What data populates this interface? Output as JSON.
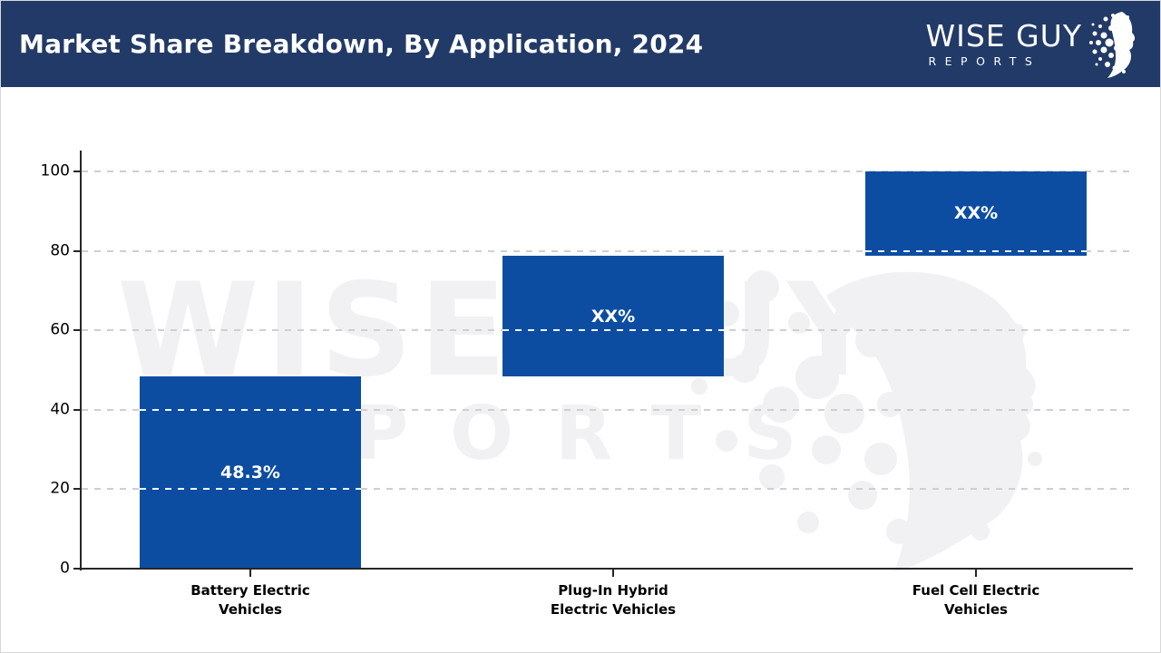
{
  "header": {
    "title": "Market Share Breakdown, By Application, 2024",
    "bg_color": "#223a67",
    "logo": {
      "line1": "WISE GUY",
      "line2": "REPORTS"
    }
  },
  "watermark": {
    "line1": "WISE GUY",
    "line2": "REPORTS"
  },
  "chart_data": {
    "type": "bar",
    "subtype": "stacked-waterfall",
    "title": "Market Share Breakdown, By Application, 2024",
    "categories": [
      [
        "Battery Electric",
        "Vehicles"
      ],
      [
        "Plug-In Hybrid",
        "Electric Vehicles"
      ],
      [
        "Fuel Cell Electric",
        "Vehicles"
      ]
    ],
    "segments": [
      {
        "start": 0,
        "end": 48.3,
        "label": "48.3%"
      },
      {
        "start": 48.3,
        "end": 78.8,
        "label": "XX%"
      },
      {
        "start": 78.8,
        "end": 100,
        "label": "XX%"
      }
    ],
    "yticks": [
      0,
      20,
      40,
      60,
      80,
      100
    ],
    "ylim": [
      0,
      105
    ],
    "bar_color": "#0c4da2",
    "bar_label_color": "#ffffff",
    "grid": "dashed",
    "grid_color": "#cfcfcf",
    "legend": "none"
  }
}
